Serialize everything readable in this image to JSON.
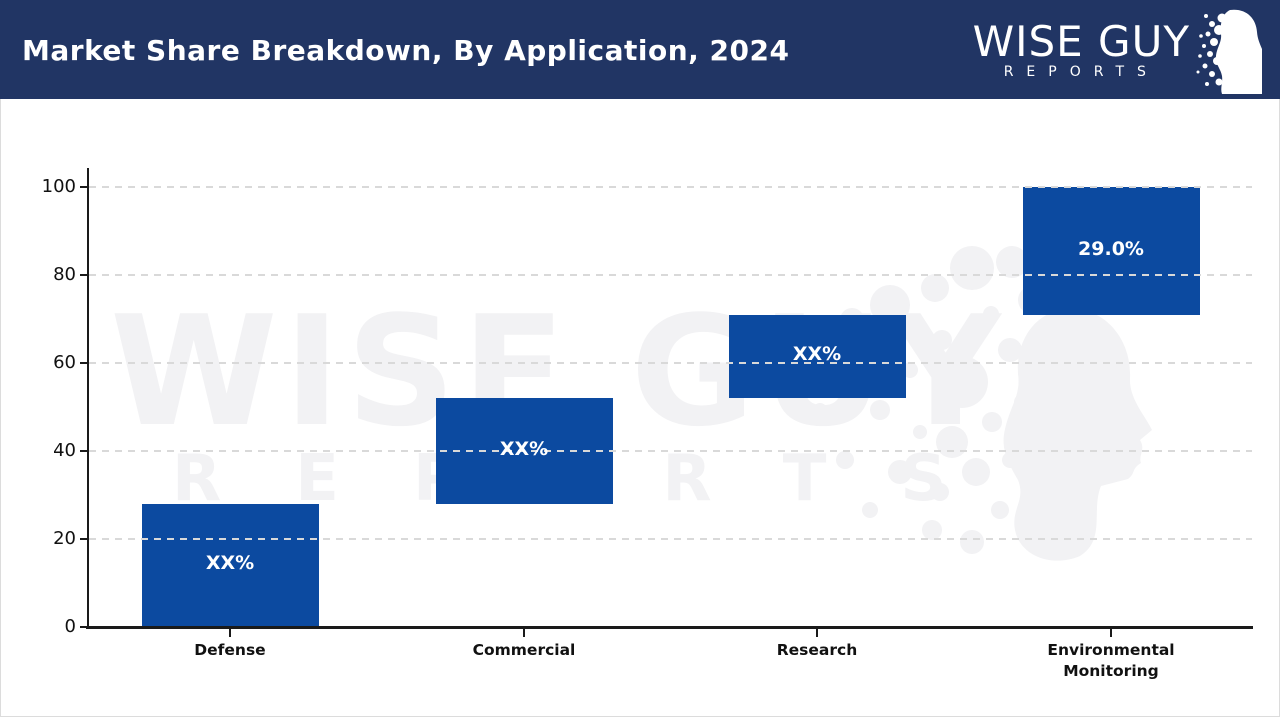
{
  "header": {
    "title": "Market Share Breakdown, By Application, 2024",
    "logo": {
      "line1": "WISE GUY",
      "line2": "REPORTS"
    }
  },
  "watermark": {
    "line1": "WISE GUY",
    "line2": "REPORTS"
  },
  "colors": {
    "header_bg": "#213564",
    "bar": "#0c4aa0",
    "bar_label": "#ffffff",
    "gridline": "#d9d9d9",
    "axis": "#1a1a1a",
    "watermark": "#f2f2f4"
  },
  "chart_data": {
    "type": "bar",
    "subtype": "waterfall-floating-segments",
    "title": "Market Share Breakdown, By Application, 2024",
    "categories": [
      "Defense",
      "Commercial",
      "Research",
      "Environmental\nMonitoring"
    ],
    "segments": [
      {
        "category": "Defense",
        "start": 0,
        "end": 28,
        "value": 28,
        "label": "XX%"
      },
      {
        "category": "Commercial",
        "start": 28,
        "end": 52,
        "value": 24,
        "label": "XX%"
      },
      {
        "category": "Research",
        "start": 52,
        "end": 71,
        "value": 19,
        "label": "XX%"
      },
      {
        "category": "Environmental Monitoring",
        "start": 71,
        "end": 100,
        "value": 29,
        "label": "29.0%"
      }
    ],
    "xlabel": "",
    "ylabel": "",
    "ylim": [
      0,
      100
    ],
    "yticks": [
      0,
      20,
      40,
      60,
      80,
      100
    ],
    "grid": "horizontal dashed, drawn above bars",
    "legend": "none"
  }
}
